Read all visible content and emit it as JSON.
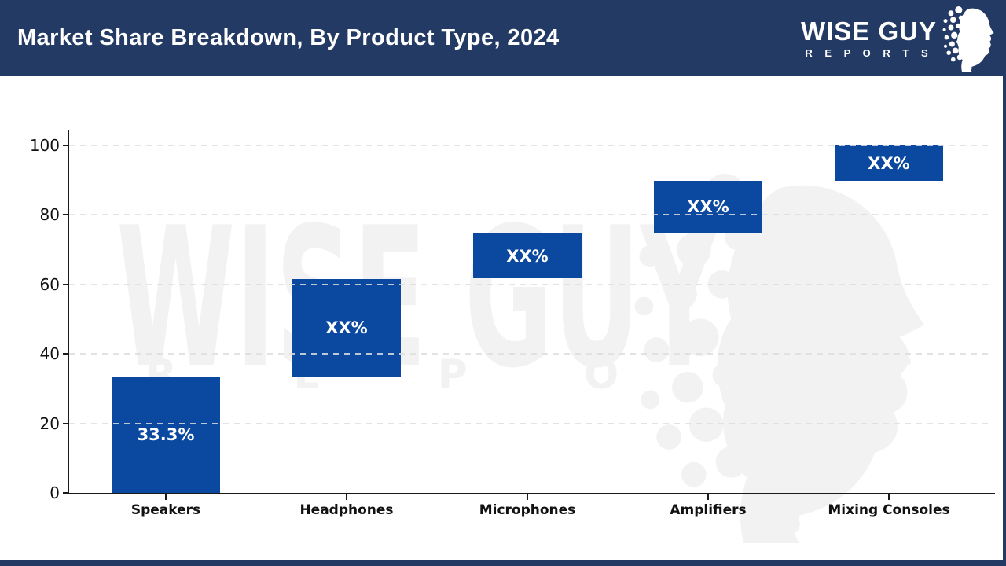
{
  "header": {
    "title": "Market Share Breakdown, By Product Type, 2024"
  },
  "logo": {
    "wordmark": "WISE GUY",
    "subtext": "R E P O R T S"
  },
  "watermark": {
    "line1": "WISE GUY",
    "line2": "R E P O R T S"
  },
  "chart_data": {
    "type": "bar",
    "subtype": "waterfall",
    "title": "Market Share Breakdown, By Product Type, 2024",
    "categories": [
      "Speakers",
      "Headphones",
      "Microphones",
      "Amplifiers",
      "Mixing Consoles"
    ],
    "segments": [
      {
        "category": "Speakers",
        "start": 0,
        "end": 33.3,
        "label": "33.3%"
      },
      {
        "category": "Headphones",
        "start": 33.3,
        "end": 61.6,
        "label": "XX%"
      },
      {
        "category": "Microphones",
        "start": 61.8,
        "end": 74.6,
        "label": "XX%"
      },
      {
        "category": "Amplifiers",
        "start": 74.7,
        "end": 89.8,
        "label": "XX%"
      },
      {
        "category": "Mixing Consoles",
        "start": 89.8,
        "end": 100,
        "label": "XX%"
      }
    ],
    "yticks": [
      0,
      20,
      40,
      60,
      80,
      100
    ],
    "ylim": [
      0,
      105
    ],
    "xlabel": "",
    "ylabel": "",
    "grid": true,
    "legend": false
  },
  "colors": {
    "header_bg": "#233a64",
    "bar": "#0b48a0",
    "bar_label": "#ffffff",
    "axis": "#1a1a1a",
    "tick_label": "#111111",
    "grid": "#e3e3e3",
    "watermark": "#f2f2f2",
    "canvas_bg": "#ffffff"
  }
}
